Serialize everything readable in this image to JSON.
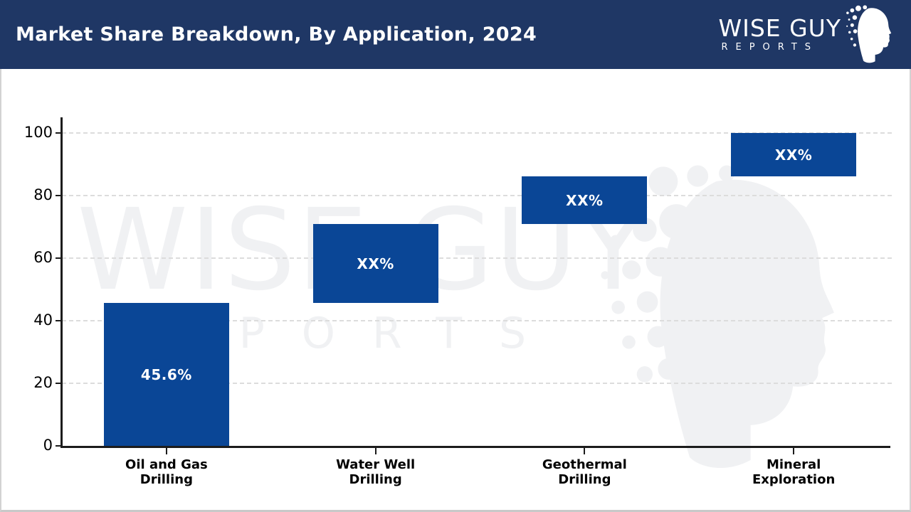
{
  "header": {
    "title": "Market Share Breakdown, By Application, 2024",
    "logo": {
      "name": "WISE GUY",
      "subtitle": "REPORTS"
    }
  },
  "watermark": {
    "line1": "WISE GUY",
    "line2": "REPORTS"
  },
  "chart_data": {
    "type": "bar",
    "variant": "floating-waterfall",
    "title": "Market Share Breakdown, By Application, 2024",
    "categories": [
      "Oil and Gas Drilling",
      "Water Well Drilling",
      "Geothermal Drilling",
      "Mineral Exploration"
    ],
    "category_label_lines": [
      [
        "Oil and Gas",
        "Drilling"
      ],
      [
        "Water Well",
        "Drilling"
      ],
      [
        "Geothermal",
        "Drilling"
      ],
      [
        "Mineral",
        "Exploration"
      ]
    ],
    "segments": [
      {
        "category": "Oil and Gas Drilling",
        "start": 0,
        "end": 45.6,
        "value": 45.6,
        "label": "45.6%"
      },
      {
        "category": "Water Well Drilling",
        "start": 45.6,
        "end": 70.9,
        "value": 25.3,
        "label": "XX%"
      },
      {
        "category": "Geothermal Drilling",
        "start": 70.9,
        "end": 86.1,
        "value": 15.2,
        "label": "XX%"
      },
      {
        "category": "Mineral Exploration",
        "start": 86.1,
        "end": 100.0,
        "value": 13.9,
        "label": "XX%"
      }
    ],
    "xlabel": "",
    "ylabel": "",
    "ylim": [
      0,
      100
    ],
    "yticks": [
      0,
      20,
      40,
      60,
      80,
      100
    ],
    "grid": {
      "horizontal": true,
      "style": "dashed"
    },
    "legend": "none",
    "colors": {
      "bar": "#0a4696",
      "bar_label": "#ffffff",
      "axis": "#1c1c1c",
      "tick_label": "#000000",
      "gridline": "#dcdcdc",
      "header_bg": "#1f3765",
      "watermark": "#f0f1f3"
    }
  }
}
